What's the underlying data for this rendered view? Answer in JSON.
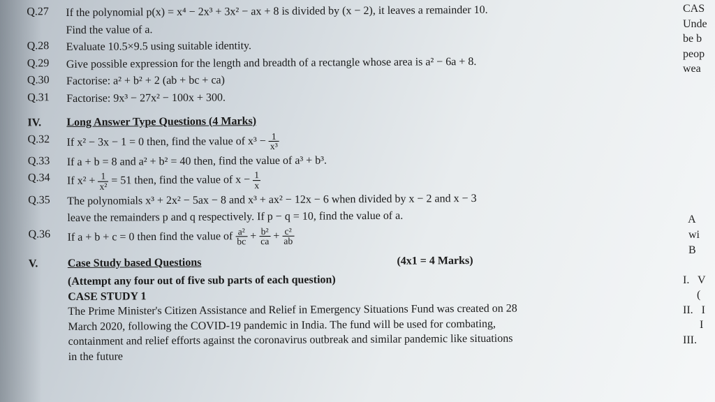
{
  "q27": {
    "num": "Q.27",
    "line1": "If the polynomial p(x) = x⁴ − 2x³ + 3x² − ax + 8 is divided by (x − 2), it leaves a remainder 10.",
    "line2": "Find the value of a."
  },
  "q28": {
    "num": "Q.28",
    "text": "Evaluate 10.5×9.5 using suitable identity."
  },
  "q29": {
    "num": "Q.29",
    "text": "Give possible expression for the length and breadth of a rectangle whose area is a² − 6a + 8."
  },
  "q30": {
    "num": "Q.30",
    "text": "Factorise: a² + b² + 2 (ab + bc + ca)"
  },
  "q31": {
    "num": "Q.31",
    "text": "Factorise: 9x³ − 27x² − 100x + 300."
  },
  "sec4": {
    "roman": "IV.",
    "title": "Long Answer Type Questions (4 Marks)"
  },
  "q32": {
    "num": "Q.32",
    "pre": "If x² − 3x − 1 = 0 then, find the value of x³ − ",
    "frac_n": "1",
    "frac_d": "x³"
  },
  "q33": {
    "num": "Q.33",
    "text": "If a + b = 8 and a² + b² = 40 then, find the value of a³ + b³."
  },
  "q34": {
    "num": "Q.34",
    "pre": "If x² + ",
    "f1n": "1",
    "f1d": "x²",
    "mid": " = 51 then, find the value of x − ",
    "f2n": "1",
    "f2d": "x"
  },
  "q35": {
    "num": "Q.35",
    "line1": "The polynomials x³ + 2x² − 5ax − 8 and x³ + ax² − 12x − 6 when divided by x − 2 and x − 3",
    "line2": "leave the remainders p and q respectively. If p − q = 10, find the value of a."
  },
  "q36": {
    "num": "Q.36",
    "pre": "If a + b + c = 0 then find the value of ",
    "f1n": "a²",
    "f1d": "bc",
    "plus1": " + ",
    "f2n": "b²",
    "f2d": "ca",
    "plus2": " + ",
    "f3n": "c²",
    "f3d": "ab"
  },
  "sec5": {
    "roman": "V.",
    "title": "Case Study based Questions",
    "marks": "(4x1 = 4 Marks)"
  },
  "attempt": "(Attempt any four out of five sub parts of each question)",
  "cs1": "CASE STUDY 1",
  "para": {
    "l1": "The Prime Minister's Citizen Assistance and Relief in Emergency Situations Fund was created on 28",
    "l2": "March 2020, following the COVID-19 pandemic in India. The fund will be used for combating,",
    "l3": "containment and relief efforts against the coronavirus outbreak and similar pandemic like situations",
    "l4": "in the future"
  },
  "rightcol": "CAS\nUnde\nbe b\npeop\nwea\n\n\n\n\n\n\n\n\n\n  A\n  wi\n  B\n\nI.   V\n     (\nII.   I\n      I\nIII.",
  "style": {
    "page_bg_from": "#b8c0c8",
    "page_bg_to": "#f5f7f8",
    "text_color": "#1a1a1a",
    "font": "Times New Roman"
  }
}
